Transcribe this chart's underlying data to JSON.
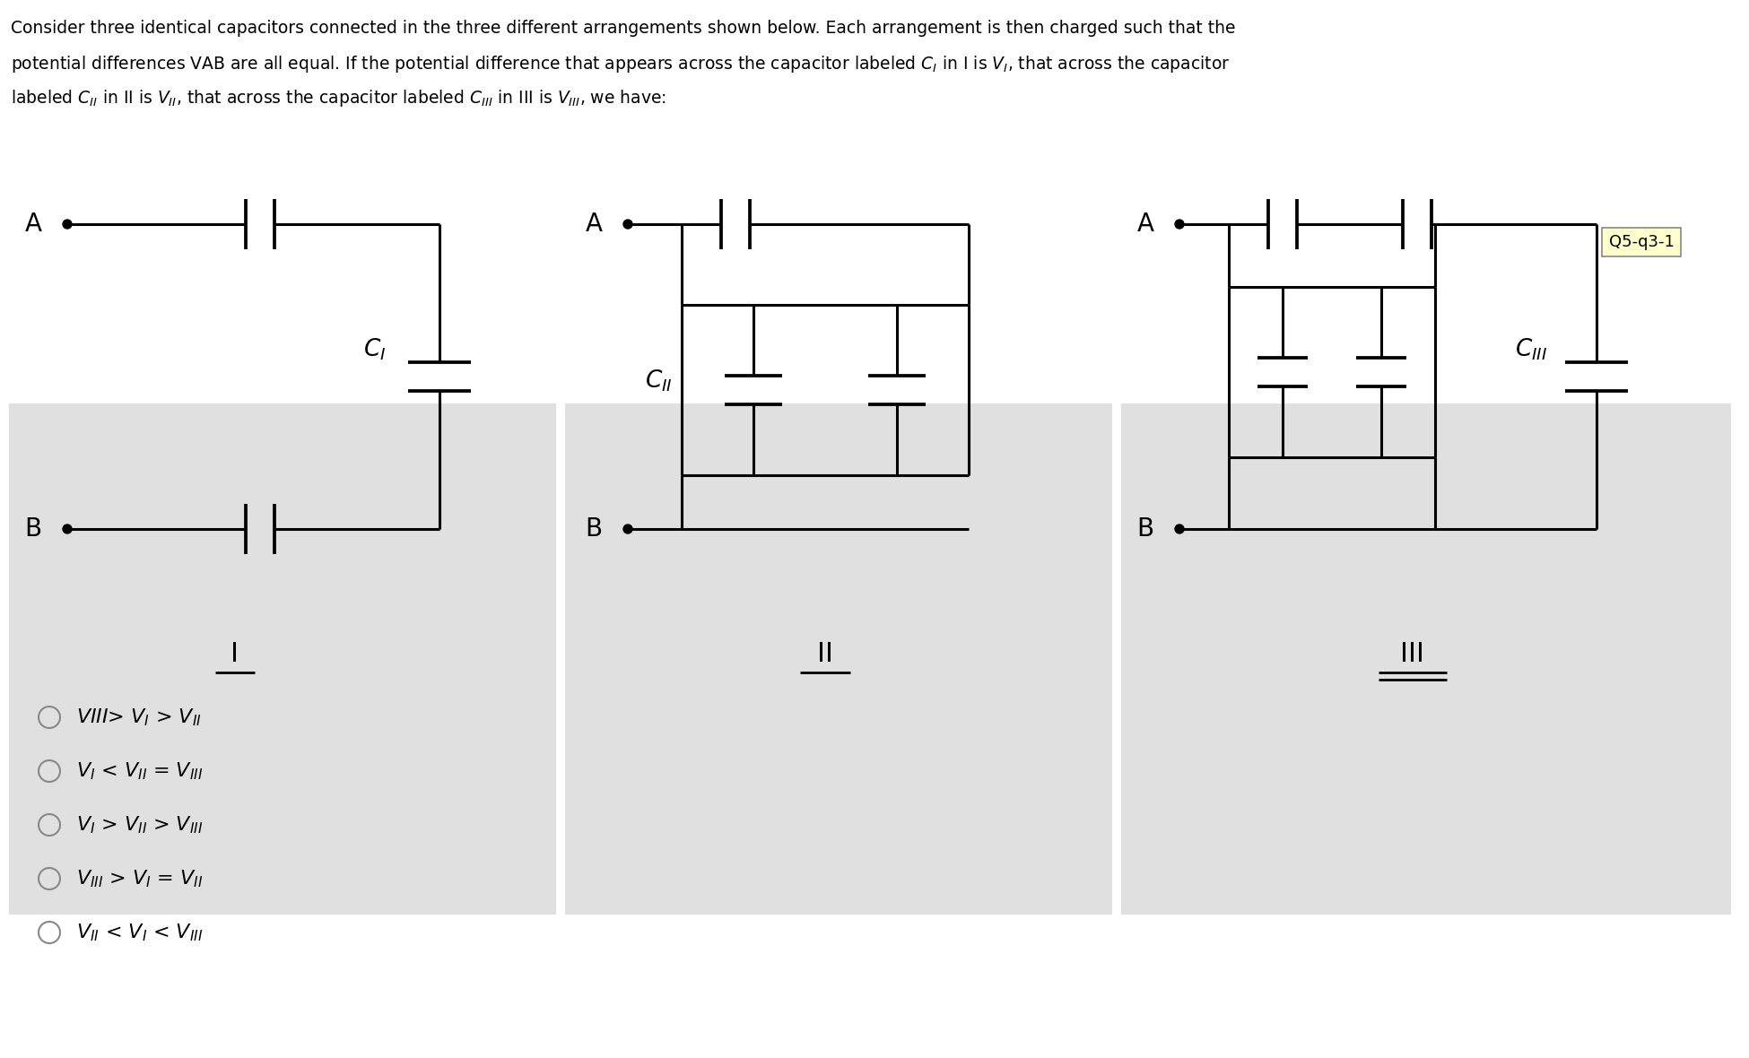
{
  "bg_color": "#e8e8e8",
  "white": "#ffffff",
  "black": "#000000",
  "label_tag": "Q5-q3-1",
  "label_bg": "#ffffcc",
  "options": [
    "VIII> $V_I$ > $V_{II}$",
    "$V_I$ < $V_{II}$ = $V_{III}$",
    "$V_I$ > $V_{II}$ > $V_{III}$",
    "$V_{III}$ > $V_I$ = $V_{II}$",
    "$V_{II}$ < $V_I$ < $V_{III}$"
  ],
  "title_lines": [
    "Consider three identical capacitors connected in the three different arrangements shown below. Each arrangement is then charged such that the",
    "potential differences VAB are all equal. If the potential difference that appears across the capacitor labeled $C_I$ in I is $V_I$, that across the capacitor",
    "labeled $C_{II}$ in II is $V_{II}$, that across the capacitor labeled $C_{III}$ in III is $V_{III}$, we have:"
  ]
}
